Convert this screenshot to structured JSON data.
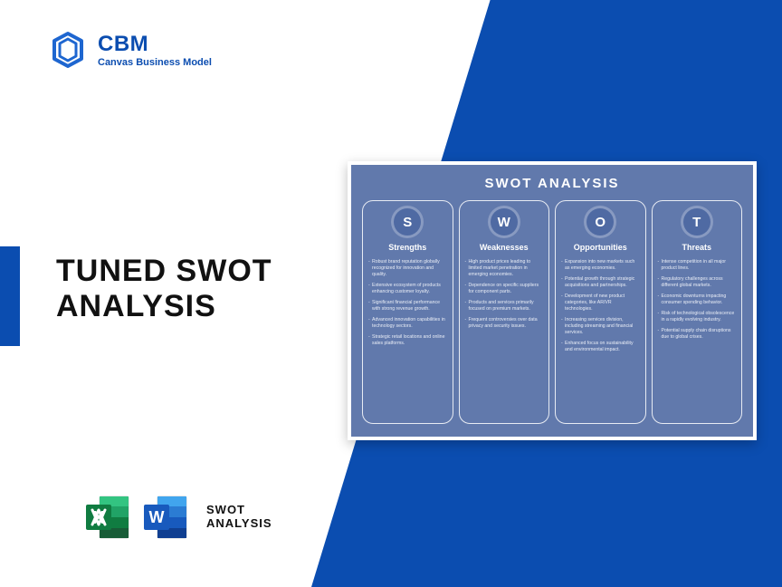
{
  "brand": {
    "name": "CBM",
    "tagline": "Canvas Business Model"
  },
  "title_line1": "TUNED SWOT",
  "title_line2": "ANALYSIS",
  "formats_label_line1": "SWOT",
  "formats_label_line2": "ANALYSIS",
  "colors": {
    "primary": "#0b4db0",
    "card_bg": "#6179ac",
    "badge_bg": "#4f6aa3",
    "excel_dark": "#185c37",
    "excel_mid": "#21a366",
    "excel_light": "#33c481",
    "word_dark": "#103f91",
    "word_mid": "#2b7cd3",
    "word_light": "#41a5ee"
  },
  "swot": {
    "heading": "SWOT ANALYSIS",
    "columns": [
      {
        "letter": "S",
        "label": "Strengths",
        "items": [
          "Robust brand reputation globally recognized for innovation and quality.",
          "Extensive ecosystem of products enhancing customer loyalty.",
          "Significant financial performance with strong revenue growth.",
          "Advanced innovation capabilities in technology sectors.",
          "Strategic retail locations and online sales platforms."
        ]
      },
      {
        "letter": "W",
        "label": "Weaknesses",
        "items": [
          "High product prices leading to limited market penetration in emerging economies.",
          "Dependence on specific suppliers for component parts.",
          "Products and services primarily focused on premium markets.",
          "Frequent controversies over data privacy and security issues."
        ]
      },
      {
        "letter": "O",
        "label": "Opportunities",
        "items": [
          "Expansion into new markets such as emerging economies.",
          "Potential growth through strategic acquisitions and partnerships.",
          "Development of new product categories, like AR/VR technologies.",
          "Increasing services division, including streaming and financial services.",
          "Enhanced focus on sustainability and environmental impact."
        ]
      },
      {
        "letter": "T",
        "label": "Threats",
        "items": [
          "Intense competition in all major product lines.",
          "Regulatory challenges across different global markets.",
          "Economic downturns impacting consumer spending behavior.",
          "Risk of technological obsolescence in a rapidly evolving industry.",
          "Potential supply chain disruptions due to global crises."
        ]
      }
    ]
  }
}
